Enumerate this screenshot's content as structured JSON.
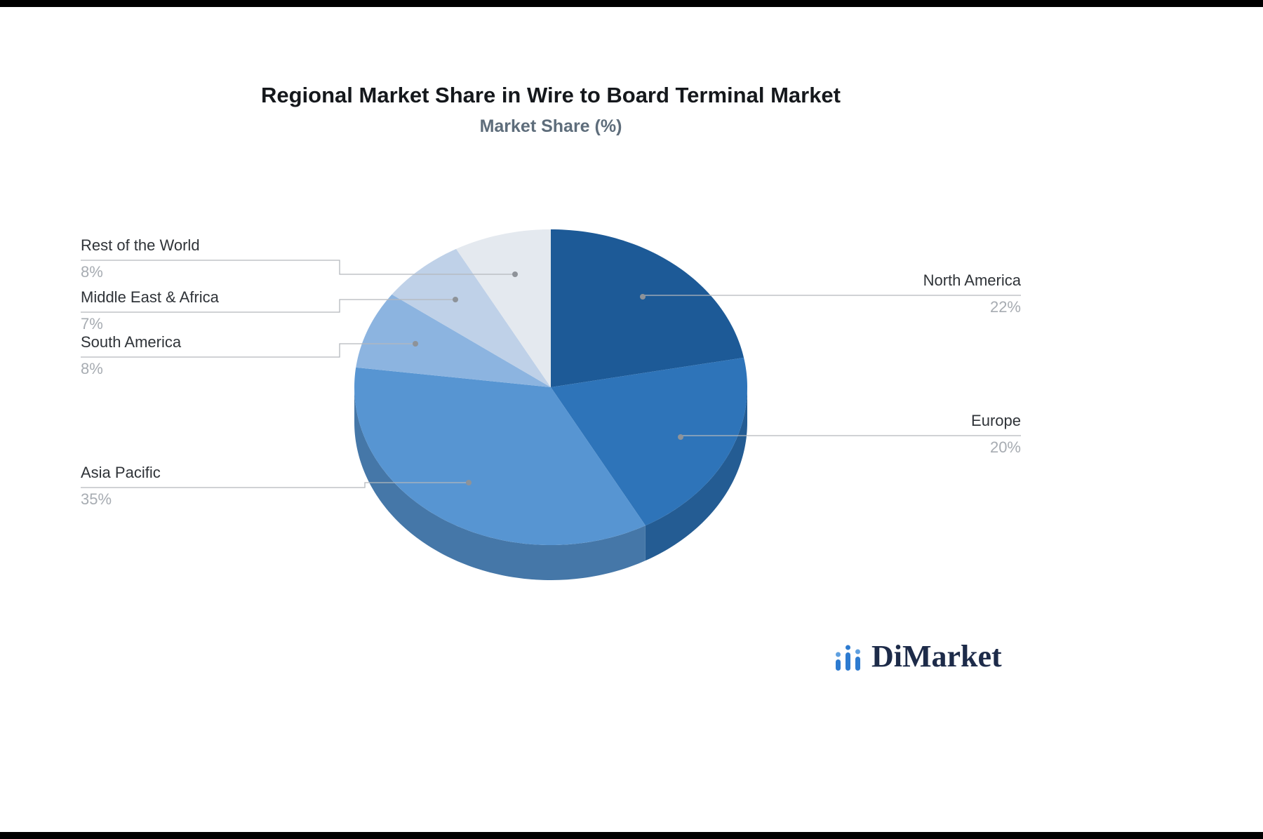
{
  "chart_data": {
    "type": "pie",
    "style": "3d-pie",
    "title": "Regional Market Share in Wire to Board Terminal Market",
    "subtitle": "Market Share (%)",
    "unit": "%",
    "direction": "clockwise",
    "start_angle": "12-oclock",
    "legend_position": "callout-labels",
    "slices": [
      {
        "label": "North America",
        "value": 22,
        "value_label": "22%",
        "color": "#1d5a97",
        "side_color": "#164872",
        "callout_side": "right"
      },
      {
        "label": "Europe",
        "value": 20,
        "value_label": "20%",
        "color": "#2e74b9",
        "side_color": "#245c93",
        "callout_side": "right"
      },
      {
        "label": "Asia Pacific",
        "value": 35,
        "value_label": "35%",
        "color": "#5795d2",
        "side_color": "#4577a8",
        "callout_side": "left"
      },
      {
        "label": "South America",
        "value": 8,
        "value_label": "8%",
        "color": "#8cb4e0",
        "side_color": "#7090b3",
        "callout_side": "left"
      },
      {
        "label": "Middle East & Africa",
        "value": 7,
        "value_label": "7%",
        "color": "#bfd1e8",
        "side_color": "#99a8ba",
        "callout_side": "left"
      },
      {
        "label": "Rest of the World",
        "value": 8,
        "value_label": "8%",
        "color": "#e4e9ef",
        "side_color": "#b6bcc4",
        "callout_side": "left"
      }
    ],
    "colors": {
      "connector_line": "#b4b8bc",
      "connector_dot": "#8e9399",
      "title_text": "#15181c",
      "subtitle_text": "#5e6d7b",
      "label_text": "#2f3338",
      "value_text": "#a7acb2"
    }
  },
  "logo": {
    "text": "DiMarket",
    "icon": "bar-chart-logo-icon",
    "text_color": "#1d2b49",
    "icon_color": "#2d7bd0"
  }
}
